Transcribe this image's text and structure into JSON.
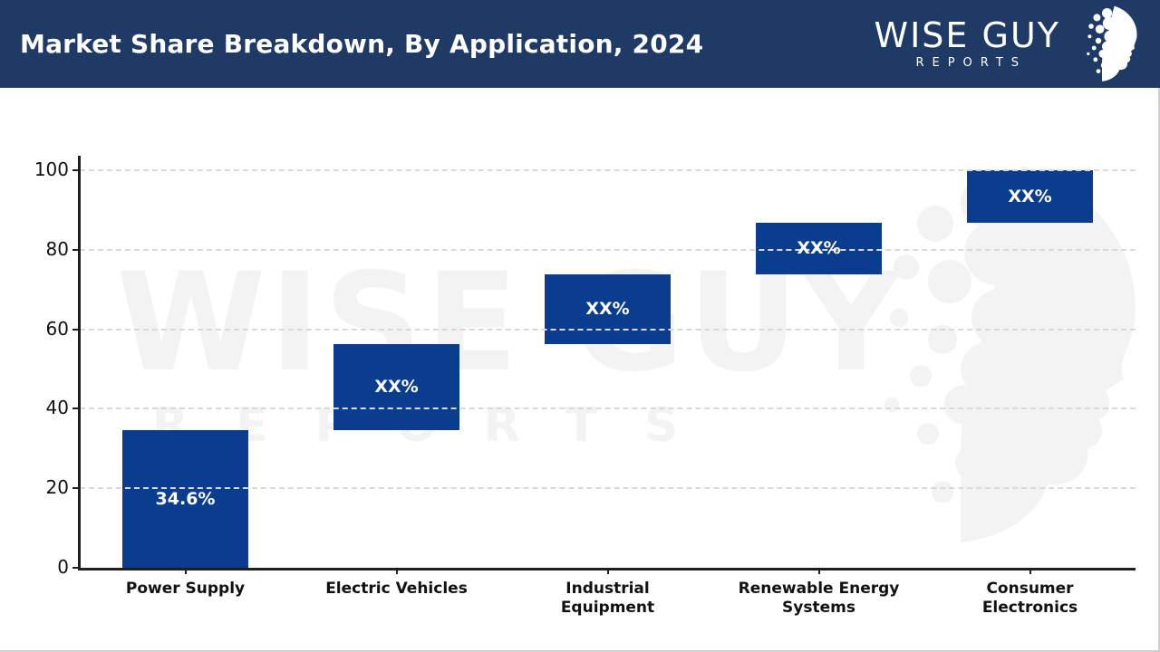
{
  "header": {
    "title": "Market Share Breakdown, By Application, 2024",
    "logo": {
      "line1": "WISE GUY",
      "line2": "REPORTS"
    }
  },
  "watermark": {
    "line1": "WISE GUY",
    "line2": "REPORTS"
  },
  "colors": {
    "header_bg": "#1f3a64",
    "bar": "#0b3d8f",
    "bar_label": "#ffffff",
    "grid": "#d9d9d9",
    "axis": "#1f1f1f",
    "tick_label": "#111111",
    "watermark": "#f3f3f3"
  },
  "chart_data": {
    "type": "bar",
    "subtype": "waterfall",
    "title": "Market Share Breakdown, By Application, 2024",
    "xlabel": "",
    "ylabel": "",
    "categories": [
      "Power Supply",
      "Electric Vehicles",
      "Industrial\nEquipment",
      "Renewable Energy\nSystems",
      "Consumer\nElectronics"
    ],
    "segments": [
      {
        "category": "Power Supply",
        "start": 0,
        "end": 34.6,
        "label": "34.6%"
      },
      {
        "category": "Electric Vehicles",
        "start": 34.6,
        "end": 56.3,
        "label": "XX%"
      },
      {
        "category": "Industrial Equipment",
        "start": 56.3,
        "end": 73.8,
        "label": "XX%"
      },
      {
        "category": "Renewable Energy Systems",
        "start": 73.8,
        "end": 86.8,
        "label": "XX%"
      },
      {
        "category": "Consumer Electronics",
        "start": 86.8,
        "end": 100,
        "label": "XX%"
      }
    ],
    "y_ticks": [
      0,
      20,
      40,
      60,
      80,
      100
    ],
    "ylim": [
      0,
      104
    ],
    "grid": true,
    "grid_style": "dashed",
    "legend": false
  }
}
